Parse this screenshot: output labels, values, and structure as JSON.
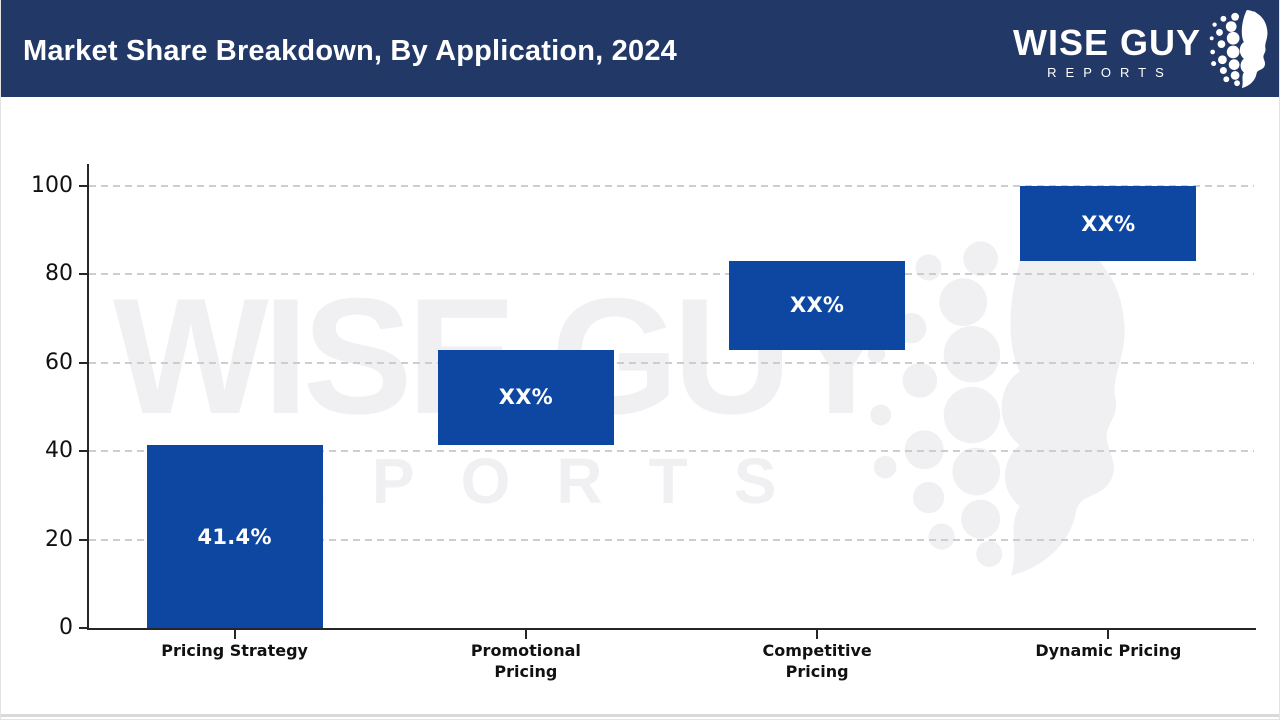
{
  "header": {
    "title": "Market Share Breakdown, By Application, 2024"
  },
  "logo": {
    "name": "Wise Guy Reports",
    "line1": "WISE GUY",
    "line2": "REPORTS"
  },
  "watermark": {
    "line1": "WISE GUY",
    "line2": "REPORTS"
  },
  "colors": {
    "header_bg": "#223968",
    "watermark": "#f0f0f2",
    "bar": "#0d47a1",
    "bar_label": "#ffffff",
    "grid": "#cccccc",
    "axis": "#262626",
    "tick_label": "#111111"
  },
  "chart_data": {
    "type": "bar",
    "variant": "waterfall",
    "title": "Market Share Breakdown, By Application, 2024",
    "categories": [
      "Pricing Strategy",
      "Promotional Pricing",
      "Competitive Pricing",
      "Dynamic Pricing"
    ],
    "segments": [
      {
        "category": "Pricing Strategy",
        "start": 0,
        "end": 41.4,
        "label": "41.4%"
      },
      {
        "category": "Promotional Pricing",
        "start": 41.4,
        "end": 63,
        "label": "XX%"
      },
      {
        "category": "Competitive Pricing",
        "start": 63,
        "end": 83,
        "label": "XX%"
      },
      {
        "category": "Dynamic Pricing",
        "start": 83,
        "end": 100,
        "label": "XX%"
      }
    ],
    "yticks": [
      0,
      20,
      40,
      60,
      80,
      100
    ],
    "ylim": [
      0,
      105
    ],
    "xlabel": "",
    "ylabel": "",
    "grid": {
      "horizontal": true,
      "style": "dashed"
    },
    "legend": "none",
    "bar_color": "#0d47a1",
    "bar_label_color": "#ffffff"
  }
}
